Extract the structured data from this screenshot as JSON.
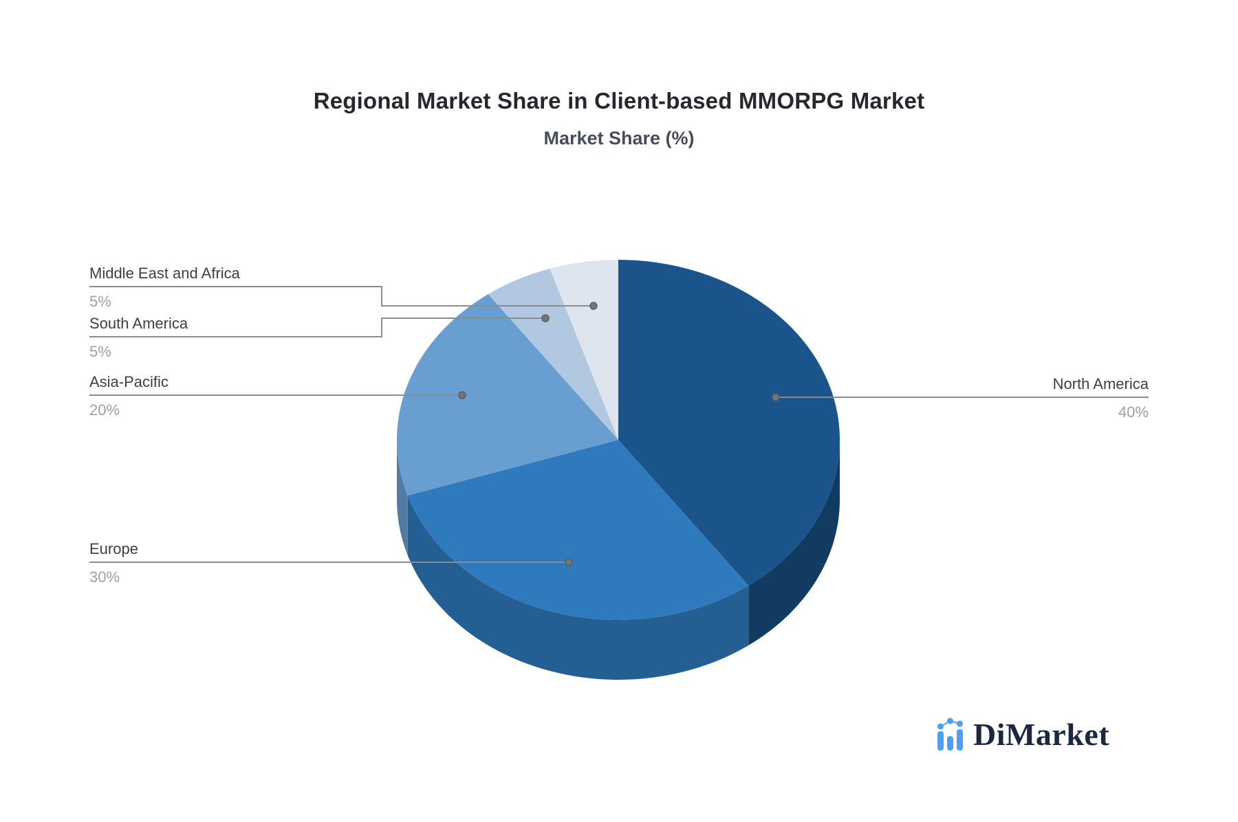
{
  "chart_data": {
    "type": "pie",
    "style": "3d",
    "title": "Regional Market Share in Client-based MMORPG Market",
    "subtitle": "Market Share (%)",
    "unit": "%",
    "start_angle_deg": -90,
    "direction": "clockwise",
    "legend_position": "callout-labels",
    "slices": [
      {
        "label": "North America",
        "value": 40,
        "value_label": "40%",
        "color": "#1a548a"
      },
      {
        "label": "Europe",
        "value": 30,
        "value_label": "30%",
        "color": "#2e7abc"
      },
      {
        "label": "Asia-Pacific",
        "value": 20,
        "value_label": "20%",
        "color": "#699ed1"
      },
      {
        "label": "South America",
        "value": 5,
        "value_label": "5%",
        "color": "#b0c9e0"
      },
      {
        "label": "Middle East and Africa",
        "value": 5,
        "value_label": "5%",
        "color": "#dfe5ee"
      }
    ]
  },
  "footer": {
    "brand": "DiMarket"
  },
  "colors": {
    "background": "#ffffff",
    "title_text": "#25282e",
    "subtitle_text": "#474e59",
    "label_text": "#3c4043",
    "value_text": "#9aa0a6",
    "leader_line": "#8c8c8c",
    "leader_dot": "#757575",
    "brand_text": "#1b2940",
    "brand_accent": "#4aa0f2"
  }
}
